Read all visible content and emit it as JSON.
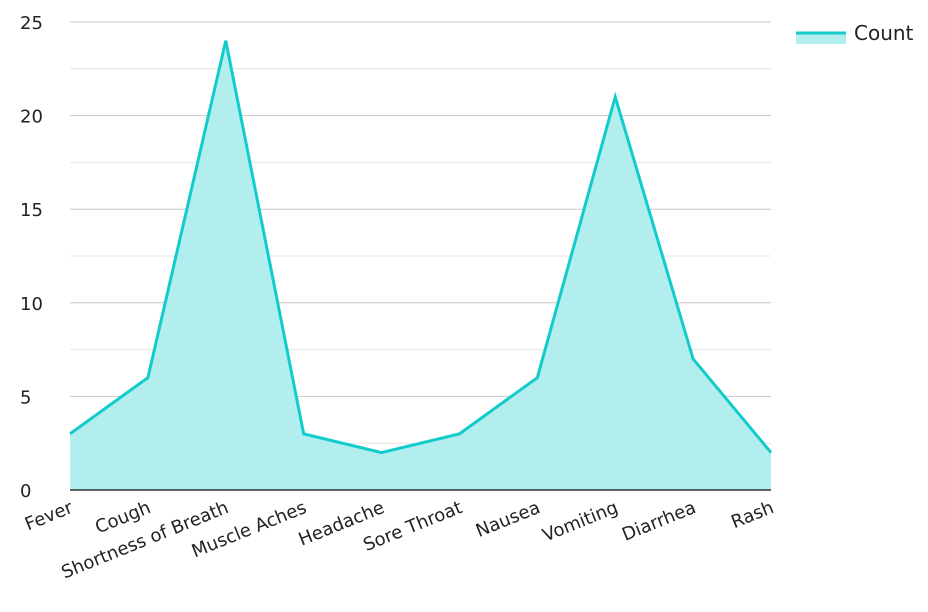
{
  "chart_data": {
    "type": "area",
    "categories": [
      "Fever",
      "Cough",
      "Shortness of Breath",
      "Muscle Aches",
      "Headache",
      "Sore Throat",
      "Nausea",
      "Vomiting",
      "Diarrhea",
      "Rash"
    ],
    "series": [
      {
        "name": "Count",
        "values": [
          3,
          6,
          24,
          3,
          2,
          3,
          6,
          21,
          7,
          2
        ]
      }
    ],
    "ylim": [
      0,
      25
    ],
    "yticks": [
      0,
      5,
      10,
      15,
      20,
      25
    ],
    "grid": true,
    "legend_position": "top-right",
    "colors": {
      "line": "#12cccc",
      "fill": "#b3eeee",
      "grid_major": "#c8c8c8",
      "grid_minor": "#e6e6e6",
      "baseline": "#333333"
    }
  }
}
